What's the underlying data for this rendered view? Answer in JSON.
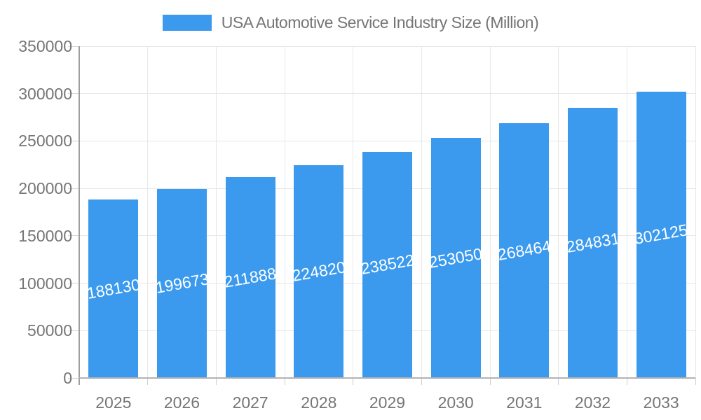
{
  "chart_data": {
    "type": "bar",
    "title": "USA Automotive Service Industry Size (Million)",
    "legend": "USA Automotive Service Industry Size (Million)",
    "legend_position": "top",
    "categories": [
      "2025",
      "2026",
      "2027",
      "2028",
      "2029",
      "2030",
      "2031",
      "2032",
      "2033"
    ],
    "series": [
      {
        "name": "USA Automotive Service Industry Size (Million)",
        "values": [
          188130,
          199673,
          211888,
          224820,
          238522,
          253050,
          268464,
          284831,
          302125
        ],
        "bar_labels": [
          "188130",
          "199673",
          "211888",
          "224820",
          "238522",
          "253050",
          "268464",
          "284831",
          "302125"
        ]
      }
    ],
    "xlabel": "",
    "ylabel": "",
    "ylim": [
      0,
      350000
    ],
    "ytick_step": 50000,
    "ytick_labels": [
      "0",
      "50000",
      "100000",
      "150000",
      "200000",
      "250000",
      "300000",
      "350000"
    ],
    "grid": true,
    "colors": {
      "bar": "#3b9aee",
      "axis_text": "#757575",
      "gridline": "#e7e7e7",
      "y_axis_line": "#9e9e9e",
      "x_baseline": "#b3b3b3",
      "value_label": "#ffffff",
      "background": "#ffffff"
    }
  }
}
